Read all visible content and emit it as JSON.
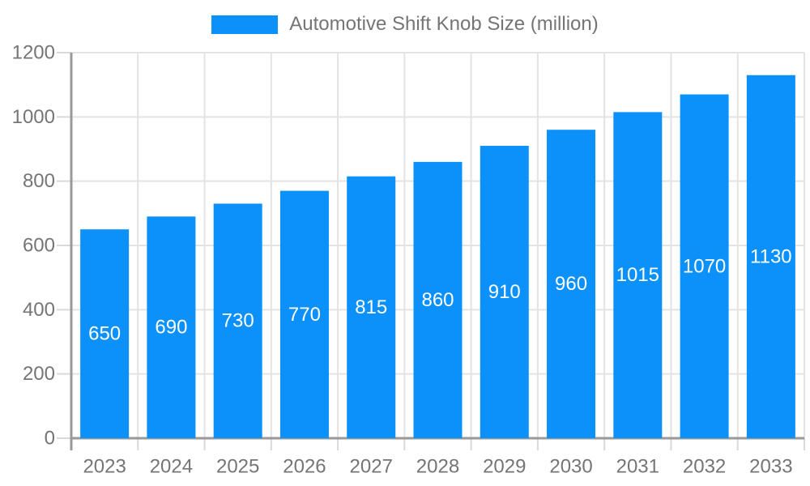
{
  "legend": {
    "label": "Automotive Shift Knob Size (million)"
  },
  "chart_data": {
    "type": "bar",
    "title": "Automotive Shift Knob Size (million)",
    "categories": [
      "2023",
      "2024",
      "2025",
      "2026",
      "2027",
      "2028",
      "2029",
      "2030",
      "2031",
      "2032",
      "2033"
    ],
    "values": [
      650,
      690,
      730,
      770,
      815,
      860,
      910,
      960,
      1015,
      1070,
      1130
    ],
    "value_labels": [
      "650",
      "690",
      "730",
      "770",
      "815",
      "860",
      "910",
      "960",
      "1015",
      "1070",
      "1130"
    ],
    "xlabel": "",
    "ylabel": "",
    "ylim": [
      0,
      1200
    ],
    "yticks": [
      0,
      200,
      400,
      600,
      800,
      1000,
      1200
    ],
    "grid": true,
    "legend_position": "top",
    "colors": {
      "bar": "#0b91f9",
      "value_label": "#ffffff",
      "tick_label": "#757575",
      "legend_text": "#757575",
      "grid_line": "#e3e3e3",
      "tick_mark": "#d9d9d9",
      "axis_line": "#999999",
      "background": "#ffffff"
    }
  }
}
